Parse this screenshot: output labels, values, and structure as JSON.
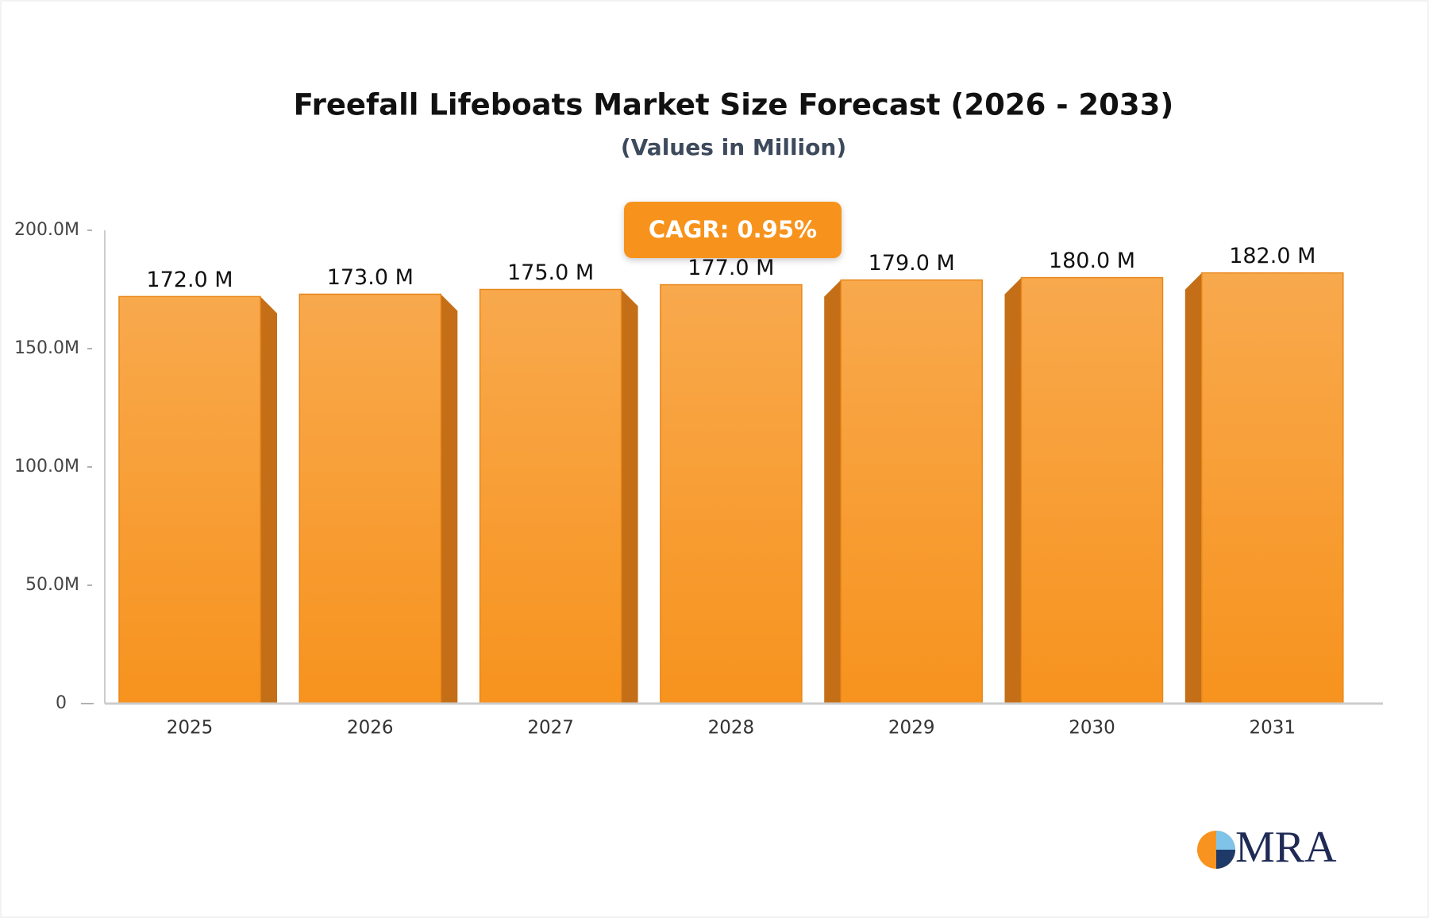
{
  "chart_data": {
    "type": "bar",
    "title": "Freefall Lifeboats Market Size Forecast (2026 - 2033)",
    "subtitle": "(Values in Million)",
    "annotation": "CAGR: 0.95%",
    "categories": [
      "2025",
      "2026",
      "2027",
      "2028",
      "2029",
      "2030",
      "2031"
    ],
    "values": [
      172,
      173,
      175,
      177,
      179,
      180,
      182
    ],
    "value_labels": [
      "172.0 M",
      "173.0 M",
      "175.0 M",
      "177.0 M",
      "179.0 M",
      "180.0 M",
      "182.0 M"
    ],
    "color": "#f7a03e",
    "ylim": [
      0,
      200
    ],
    "yticks": [
      0,
      {
        "value": 50,
        "label": "50.0M"
      },
      {
        "value": 100,
        "label": "100.0M"
      },
      {
        "value": 150,
        "label": "150.0M"
      },
      {
        "value": 200,
        "label": "200.0M"
      }
    ],
    "grid": false
  },
  "logo": {
    "text": "MRA"
  }
}
